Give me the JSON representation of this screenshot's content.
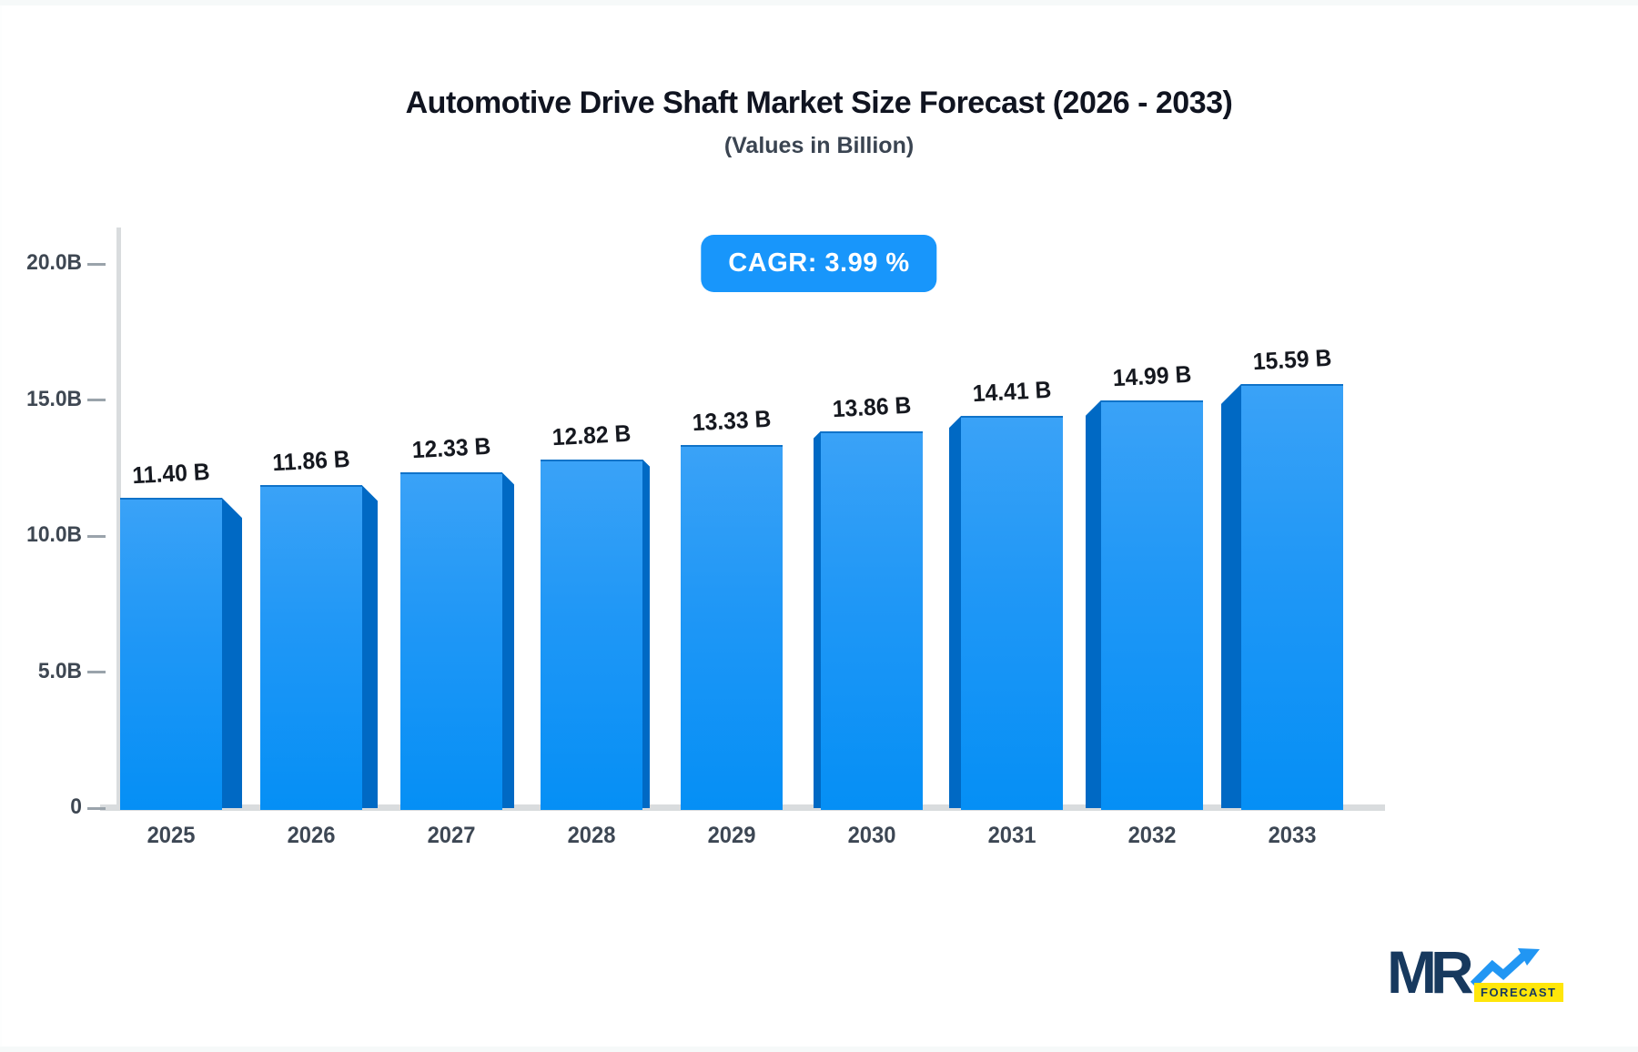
{
  "header": {
    "title": "Automotive Drive Shaft Market Size Forecast (2026 - 2033)",
    "subtitle": "(Values in Billion)",
    "cagr_label": "CAGR: 3.99 %"
  },
  "chart_data": {
    "type": "bar",
    "title": "Automotive Drive Shaft Market Size Forecast (2026 - 2033)",
    "subtitle": "(Values in Billion)",
    "cagr_percent": 3.99,
    "categories": [
      "2025",
      "2026",
      "2027",
      "2028",
      "2029",
      "2030",
      "2031",
      "2032",
      "2033"
    ],
    "values": [
      11.4,
      11.86,
      12.33,
      12.82,
      13.33,
      13.86,
      14.41,
      14.99,
      15.59
    ],
    "value_labels": [
      "11.40 B",
      "11.86 B",
      "12.33 B",
      "12.82 B",
      "13.33 B",
      "13.86 B",
      "14.41 B",
      "14.99 B",
      "15.59 B"
    ],
    "unit": "Billion",
    "xlabel": "",
    "ylabel": "",
    "ylim": [
      0,
      20
    ],
    "yticks": [
      {
        "value": 0,
        "label": "0"
      },
      {
        "value": 5,
        "label": "5.0B"
      },
      {
        "value": 10,
        "label": "10.0B"
      },
      {
        "value": 15,
        "label": "15.0B"
      },
      {
        "value": 20,
        "label": "20.0B"
      }
    ],
    "grid": false,
    "legend": "none",
    "bar_style": "pseudo-3d, side shading faces outward from center bar",
    "colors": {
      "bar_top": "#3aa2f7",
      "bar_bottom": "#058ff5",
      "bar_side": "#0069c4",
      "axis_line": "#d9dcde",
      "tick_dash": "#9aa3ab",
      "label_text": "#15181f",
      "axis_text": "#3e4752",
      "badge_bg": "#1896fb",
      "badge_text": "#ffffff"
    }
  },
  "logo": {
    "mr": "MR",
    "forecast": "FORECAST",
    "navy": "#17395e",
    "arrow_blue": "#2196f3",
    "yellow": "#ffe60a"
  }
}
